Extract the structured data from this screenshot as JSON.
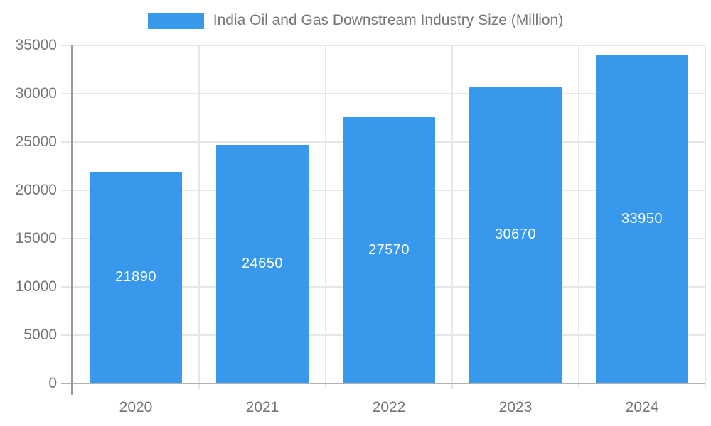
{
  "legend": {
    "label": "India Oil and Gas Downstream Industry Size (Million)"
  },
  "colors": {
    "bar": "#3898ec",
    "bar_label": "#ffffff",
    "grid": "#e6e6e6",
    "baseline": "#b0b0b0",
    "axis_line": "#999999",
    "text": "#757575",
    "background": "#ffffff"
  },
  "chart_data": {
    "type": "bar",
    "title": "India Oil and Gas Downstream Industry Size (Million)",
    "categories": [
      "2020",
      "2021",
      "2022",
      "2023",
      "2024"
    ],
    "values": [
      21890,
      24650,
      27570,
      30670,
      33950
    ],
    "series": [
      {
        "name": "India Oil and Gas Downstream Industry Size (Million)",
        "values": [
          21890,
          24650,
          27570,
          30670,
          33950
        ]
      }
    ],
    "xlabel": "",
    "ylabel": "",
    "ylim": [
      0,
      35000
    ],
    "yticks": [
      0,
      5000,
      10000,
      15000,
      20000,
      25000,
      30000,
      35000
    ],
    "grid": true,
    "legend_position": "top",
    "bar_value_labels_inside": true
  }
}
